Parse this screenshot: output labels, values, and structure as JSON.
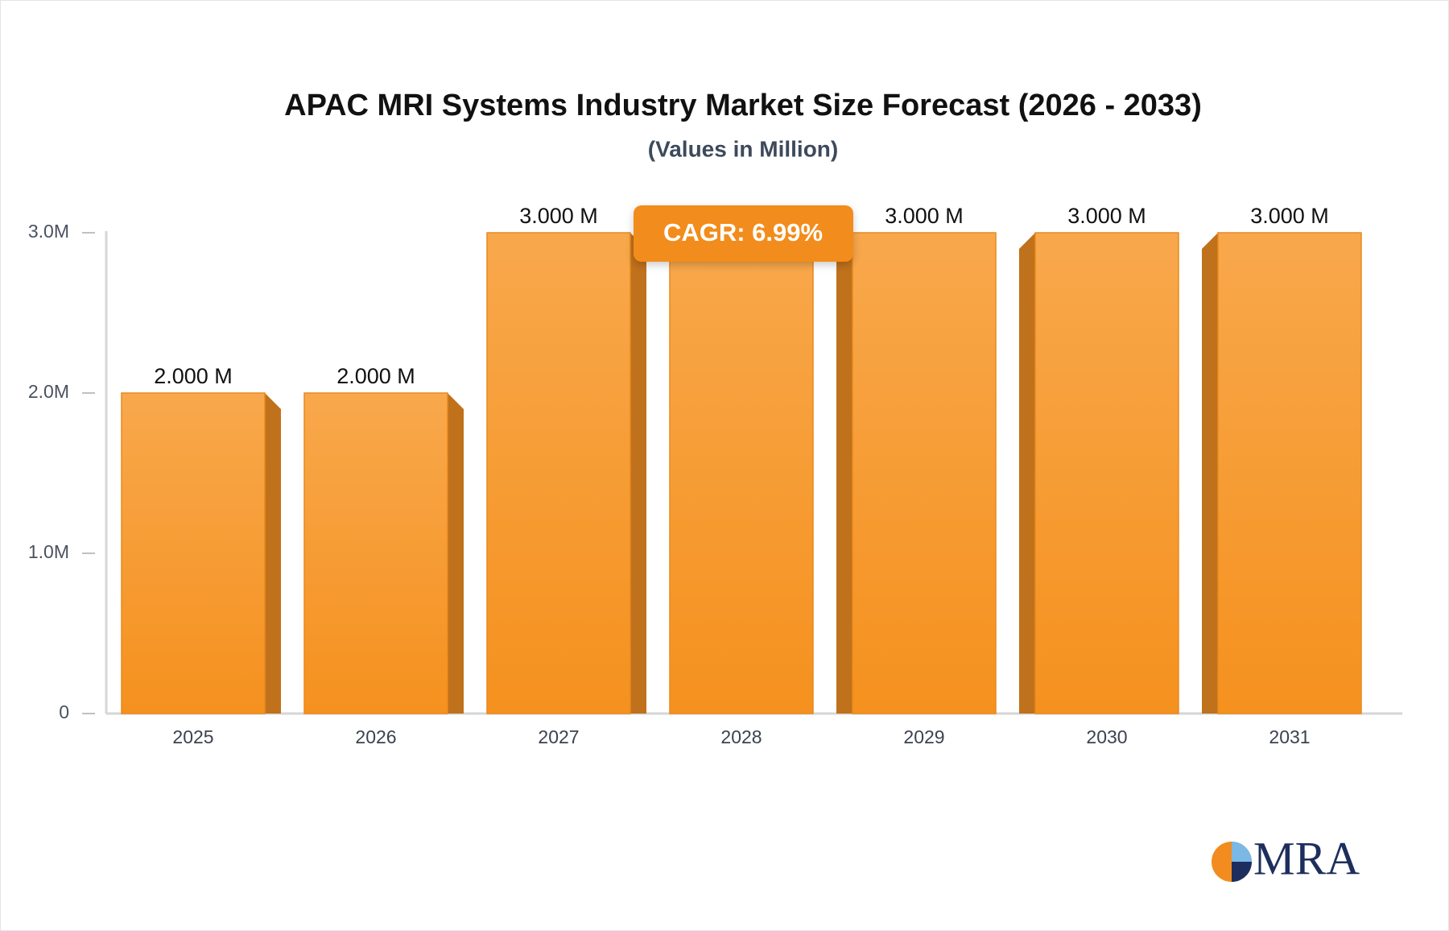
{
  "chart_data": {
    "type": "bar3d",
    "title": "APAC MRI Systems Industry Market Size Forecast (2026 - 2033)",
    "subtitle": "(Values in Million)",
    "categories": [
      "2025",
      "2026",
      "2027",
      "2028",
      "2029",
      "2030",
      "2031"
    ],
    "values": [
      2000000,
      2000000,
      3000000,
      3000000,
      3000000,
      3000000,
      3000000
    ],
    "value_labels": [
      "2.000 M",
      "2.000 M",
      "3.000 M",
      null,
      "3.000 M",
      "3.000 M",
      "3.000 M"
    ],
    "color": "#f6992f",
    "ylim": [
      0,
      3000000
    ],
    "yticks": [
      0,
      {
        "value": 1000000,
        "label": "1.0M"
      },
      {
        "value": 2000000,
        "label": "2.0M"
      },
      {
        "value": 3000000,
        "label": "3.0M"
      }
    ],
    "annotation": "CAGR: 6.99%",
    "brand": "MRA"
  }
}
